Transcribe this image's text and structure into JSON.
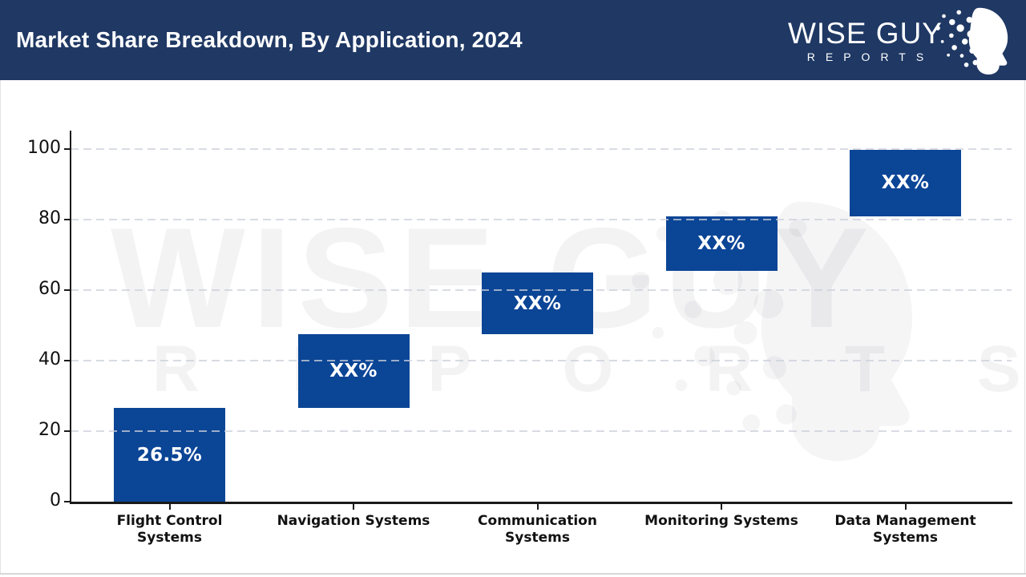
{
  "header": {
    "title": "Market Share Breakdown, By Application, 2024",
    "logo": {
      "line1": "WISE GUY",
      "line2": "REPORTS"
    }
  },
  "watermark": {
    "line1": "WISE GUY",
    "line2": "R E P O R T S"
  },
  "colors": {
    "header_bg": "#1F3864",
    "bar": "#0B4596",
    "bar_label": "#FFFFFF",
    "grid": "#D9D9D9",
    "axis": "#1A1A1A"
  },
  "chart_data": {
    "type": "bar",
    "subtype": "waterfall",
    "title": "Market Share Breakdown, By Application, 2024",
    "categories": [
      "Flight Control Systems",
      "Navigation Systems",
      "Communication Systems",
      "Monitoring Systems",
      "Data Management Systems"
    ],
    "category_lines": [
      [
        "Flight Control",
        "Systems"
      ],
      [
        "Navigation Systems"
      ],
      [
        "Communication",
        "Systems"
      ],
      [
        "Monitoring Systems"
      ],
      [
        "Data Management",
        "Systems"
      ]
    ],
    "segments": [
      {
        "category": "Flight Control Systems",
        "start": 0,
        "end": 26.5,
        "value_label": "26.5%"
      },
      {
        "category": "Navigation Systems",
        "start": 26.5,
        "end": 47.5,
        "value_label": "XX%"
      },
      {
        "category": "Communication Systems",
        "start": 47.5,
        "end": 65,
        "value_label": "XX%"
      },
      {
        "category": "Monitoring Systems",
        "start": 65.5,
        "end": 81,
        "value_label": "XX%"
      },
      {
        "category": "Data Management Systems",
        "start": 81,
        "end": 99.8,
        "value_label": "XX%"
      }
    ],
    "xlabel": "",
    "ylabel": "",
    "yticks": [
      0,
      20,
      40,
      60,
      80,
      100
    ],
    "ylim": [
      0,
      105
    ],
    "grid": "horizontal dashed",
    "legend": "none",
    "bar_color": "#0B4596",
    "value_label_color": "#FFFFFF"
  }
}
